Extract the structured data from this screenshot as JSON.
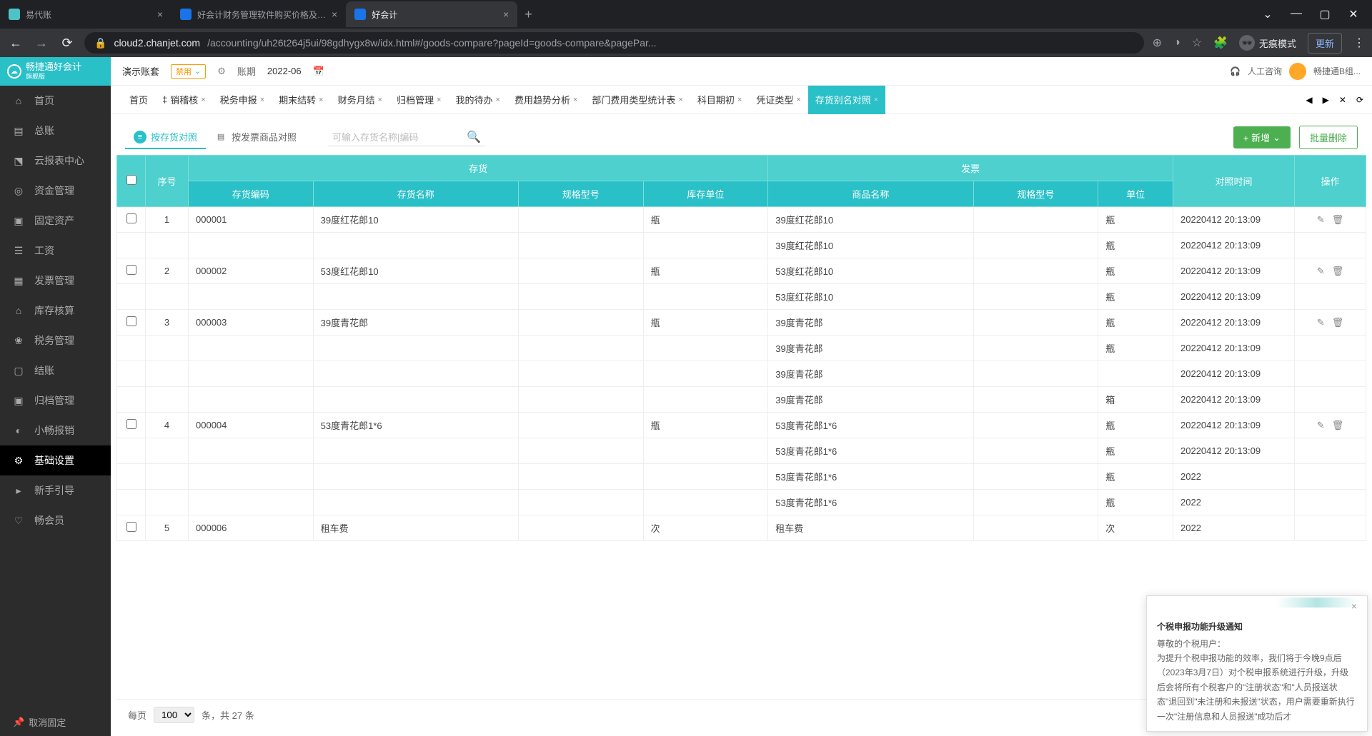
{
  "browser": {
    "tabs": [
      {
        "title": "易代账",
        "active": false
      },
      {
        "title": "好会计财务管理软件购买价格及…",
        "active": false
      },
      {
        "title": "好会计",
        "active": true
      }
    ],
    "url_domain": "cloud2.chanjet.com",
    "url_path": "/accounting/uh26t264j5ui/98gdhygx8w/idx.html#/goods-compare?pageId=goods-compare&pagePar...",
    "incognito_label": "无痕模式",
    "update_label": "更新"
  },
  "sidebar": {
    "logo_text": "畅捷通好会计",
    "logo_sub": "旗舰版",
    "items": [
      {
        "icon": "⌂",
        "label": "首页"
      },
      {
        "icon": "▤",
        "label": "总账"
      },
      {
        "icon": "⬔",
        "label": "云报表中心"
      },
      {
        "icon": "◎",
        "label": "资金管理"
      },
      {
        "icon": "▣",
        "label": "固定资产"
      },
      {
        "icon": "☰",
        "label": "工资"
      },
      {
        "icon": "▦",
        "label": "发票管理"
      },
      {
        "icon": "⌂",
        "label": "库存核算"
      },
      {
        "icon": "❀",
        "label": "税务管理"
      },
      {
        "icon": "▢",
        "label": "结账"
      },
      {
        "icon": "▣",
        "label": "归档管理"
      },
      {
        "icon": "◐",
        "label": "小畅报销"
      },
      {
        "icon": "⚙",
        "label": "基础设置",
        "active": true
      },
      {
        "icon": "▸",
        "label": "新手引导"
      },
      {
        "icon": "♡",
        "label": "畅会员"
      }
    ],
    "footer": "取消固定"
  },
  "header": {
    "account": "演示账套",
    "disable_tag": "禁用",
    "gear": "⚙",
    "period_label": "账期",
    "period_value": "2022-06",
    "support_label": "人工咨询",
    "user_label": "畅捷通B组..."
  },
  "tabs": {
    "items": [
      {
        "label": "首页",
        "closable": false
      },
      {
        "label": "销稽核",
        "closable": true,
        "prefix": "‡"
      },
      {
        "label": "税务申报",
        "closable": true
      },
      {
        "label": "期末结转",
        "closable": true
      },
      {
        "label": "财务月结",
        "closable": true
      },
      {
        "label": "归档管理",
        "closable": true
      },
      {
        "label": "我的待办",
        "closable": true
      },
      {
        "label": "费用趋势分析",
        "closable": true
      },
      {
        "label": "部门费用类型统计表",
        "closable": true
      },
      {
        "label": "科目期初",
        "closable": true
      },
      {
        "label": "凭证类型",
        "closable": true
      },
      {
        "label": "存货别名对照",
        "closable": true,
        "active": true
      }
    ]
  },
  "toolbar": {
    "sub_tabs": [
      {
        "label": "按存货对照",
        "active": true,
        "icon": "≡"
      },
      {
        "label": "按发票商品对照",
        "active": false,
        "icon": "▤"
      }
    ],
    "search_placeholder": "可输入存货名称|编码",
    "add_label": "+ 新增",
    "del_label": "批量删除"
  },
  "table": {
    "group_headers": {
      "inventory": "存货",
      "invoice": "发票"
    },
    "headers": {
      "seq": "序号",
      "inv_code": "存货编码",
      "inv_name": "存货名称",
      "spec": "规格型号",
      "stock_unit": "库存单位",
      "goods_name": "商品名称",
      "spec2": "规格型号",
      "unit": "单位",
      "time": "对照时间",
      "action": "操作"
    },
    "rows": [
      {
        "chk": true,
        "seq": "1",
        "code": "000001",
        "name": "39度红花郎10",
        "spec": "",
        "sunit": "瓶",
        "gname": "39度红花郎10",
        "spec2": "",
        "unit": "瓶",
        "time": "20220412 20:13:09",
        "editable": true
      },
      {
        "chk": false,
        "seq": "",
        "code": "",
        "name": "",
        "spec": "",
        "sunit": "",
        "gname": "39度红花郎10",
        "spec2": "",
        "unit": "瓶",
        "time": "20220412 20:13:09",
        "editable": false
      },
      {
        "chk": true,
        "seq": "2",
        "code": "000002",
        "name": "53度红花郎10",
        "spec": "",
        "sunit": "瓶",
        "gname": "53度红花郎10",
        "spec2": "",
        "unit": "瓶",
        "time": "20220412 20:13:09",
        "editable": true
      },
      {
        "chk": false,
        "seq": "",
        "code": "",
        "name": "",
        "spec": "",
        "sunit": "",
        "gname": "53度红花郎10",
        "spec2": "",
        "unit": "瓶",
        "time": "20220412 20:13:09",
        "editable": false
      },
      {
        "chk": true,
        "seq": "3",
        "code": "000003",
        "name": "39度青花郎",
        "spec": "",
        "sunit": "瓶",
        "gname": "39度青花郎",
        "spec2": "",
        "unit": "瓶",
        "time": "20220412 20:13:09",
        "editable": true
      },
      {
        "chk": false,
        "seq": "",
        "code": "",
        "name": "",
        "spec": "",
        "sunit": "",
        "gname": "39度青花郎",
        "spec2": "",
        "unit": "瓶",
        "time": "20220412 20:13:09",
        "editable": false
      },
      {
        "chk": false,
        "seq": "",
        "code": "",
        "name": "",
        "spec": "",
        "sunit": "",
        "gname": "39度青花郎",
        "spec2": "",
        "unit": "",
        "time": "20220412 20:13:09",
        "editable": false
      },
      {
        "chk": false,
        "seq": "",
        "code": "",
        "name": "",
        "spec": "",
        "sunit": "",
        "gname": "39度青花郎",
        "spec2": "",
        "unit": "箱",
        "time": "20220412 20:13:09",
        "editable": false
      },
      {
        "chk": true,
        "seq": "4",
        "code": "000004",
        "name": "53度青花郎1*6",
        "spec": "",
        "sunit": "瓶",
        "gname": "53度青花郎1*6",
        "spec2": "",
        "unit": "瓶",
        "time": "20220412 20:13:09",
        "editable": true
      },
      {
        "chk": false,
        "seq": "",
        "code": "",
        "name": "",
        "spec": "",
        "sunit": "",
        "gname": "53度青花郎1*6",
        "spec2": "",
        "unit": "瓶",
        "time": "20220412 20:13:09",
        "editable": false
      },
      {
        "chk": false,
        "seq": "",
        "code": "",
        "name": "",
        "spec": "",
        "sunit": "",
        "gname": "53度青花郎1*6",
        "spec2": "",
        "unit": "瓶",
        "time": "2022",
        "editable": false
      },
      {
        "chk": false,
        "seq": "",
        "code": "",
        "name": "",
        "spec": "",
        "sunit": "",
        "gname": "53度青花郎1*6",
        "spec2": "",
        "unit": "瓶",
        "time": "2022",
        "editable": false
      },
      {
        "chk": true,
        "seq": "5",
        "code": "000006",
        "name": "租车费",
        "spec": "",
        "sunit": "次",
        "gname": "租车费",
        "spec2": "",
        "unit": "次",
        "time": "2022",
        "editable": false
      }
    ]
  },
  "pagination": {
    "per_page_label": "每页",
    "per_page_value": "100",
    "total_text": "条，共 27 条"
  },
  "popup": {
    "title": "个税申报功能升级通知",
    "greeting": "尊敬的个税用户：",
    "body": "为提升个税申报功能的效率，我们将于今晚9点后（2023年3月7日）对个税申报系统进行升级，升级后会将所有个税客户的\"注册状态\"和\"人员报送状态\"退回到\"未注册和未报送\"状态，用户需要重新执行一次\"注册信息和人员报送\"成功后才"
  }
}
